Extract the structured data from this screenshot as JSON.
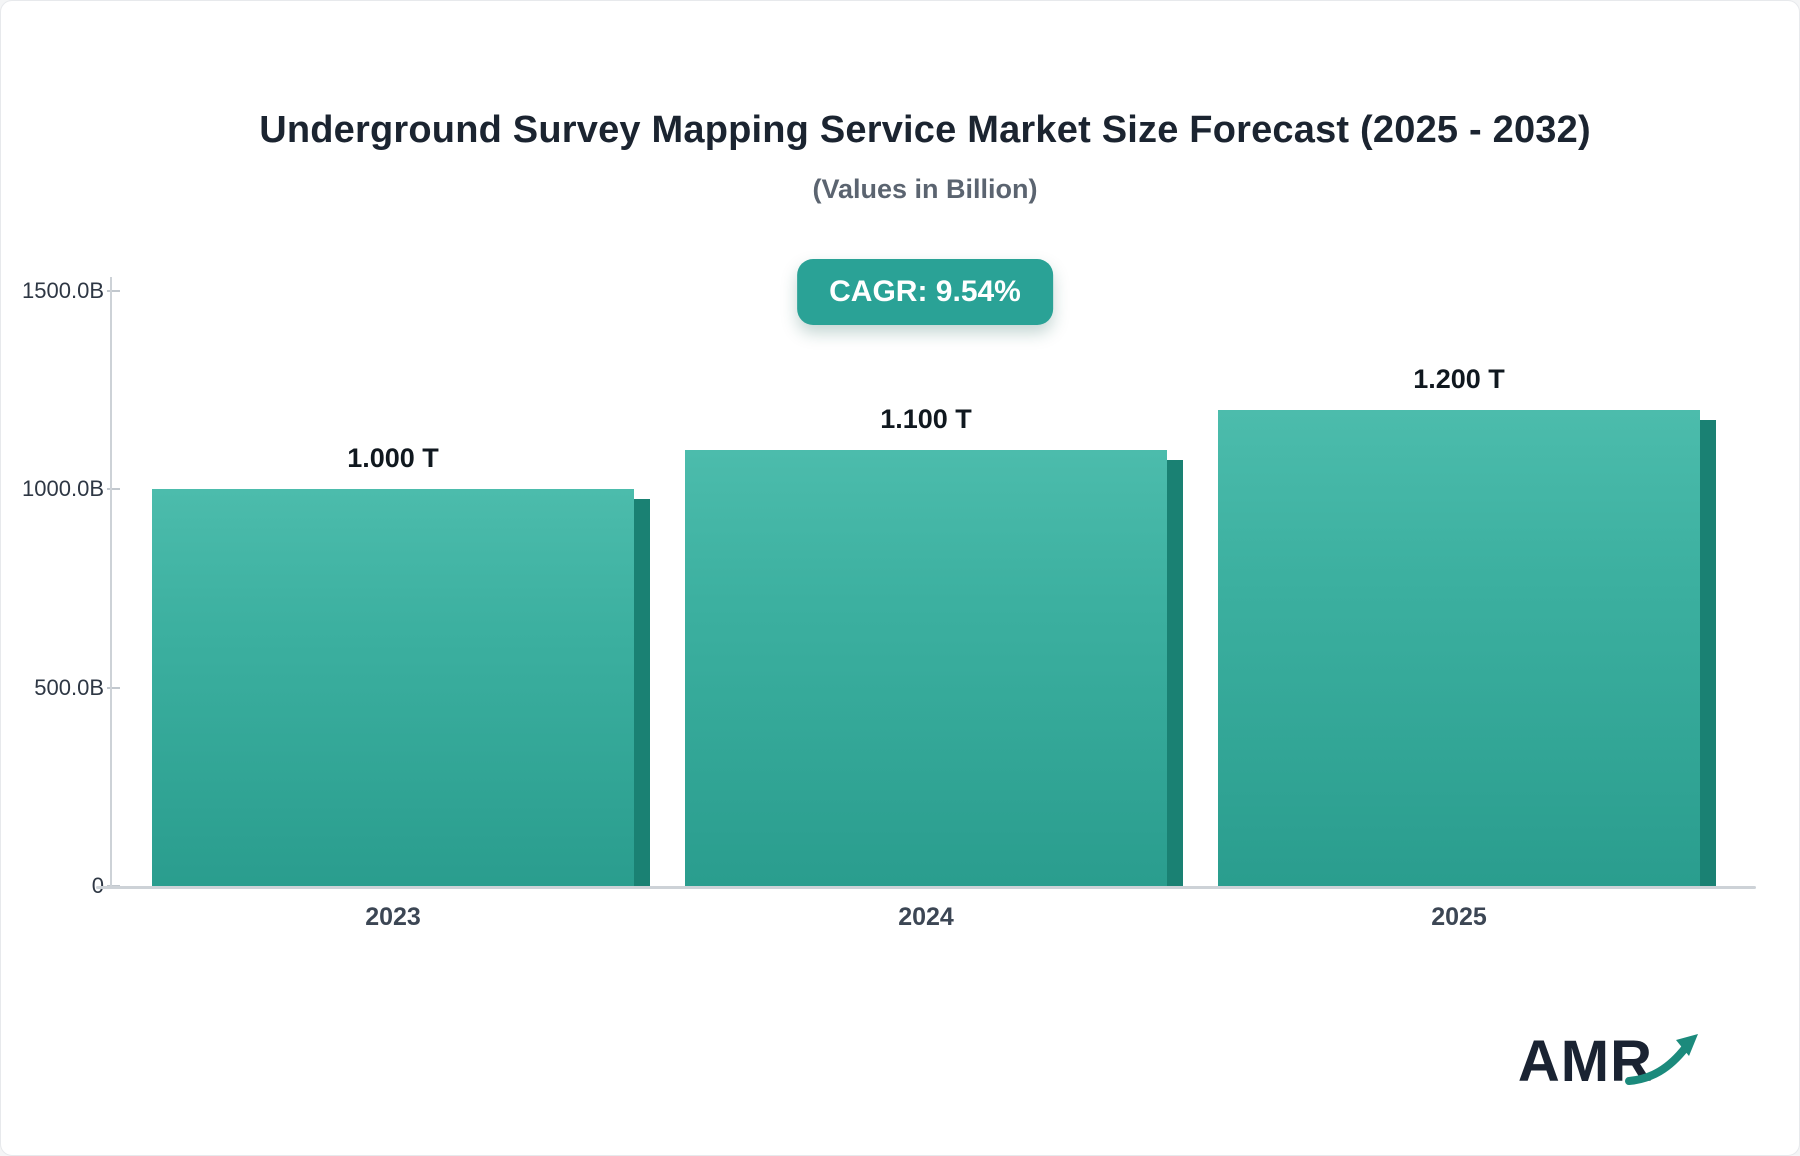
{
  "chart_data": {
    "type": "bar",
    "title": "Underground Survey Mapping Service Market Size Forecast (2025 - 2032)",
    "subtitle": "(Values in Billion)",
    "annotation": "CAGR: 9.54%",
    "categories": [
      "2023",
      "2024",
      "2025"
    ],
    "values": [
      1000,
      1100,
      1200
    ],
    "value_labels": [
      "1.000 T",
      "1.100 T",
      "1.200 T"
    ],
    "unit": "Billion",
    "ylim": [
      0,
      1500
    ],
    "y_ticks": [
      {
        "label": "1500.0B",
        "value": 1500
      },
      {
        "label": "1000.0B",
        "value": 1000
      },
      {
        "label": "500.0B",
        "value": 500
      },
      {
        "label": "0",
        "value": 0
      }
    ],
    "grid": false,
    "legend": false,
    "colors": {
      "bar_top": "#4cbcac",
      "bar_bottom": "#2a9d8e",
      "bar_side": "#1a8173",
      "badge_bg": "#2aa296",
      "title_text": "#1b2430",
      "subtitle_text": "#5b6470",
      "axis_line": "#cdd2d7"
    }
  },
  "logo": {
    "text": "AMR"
  }
}
